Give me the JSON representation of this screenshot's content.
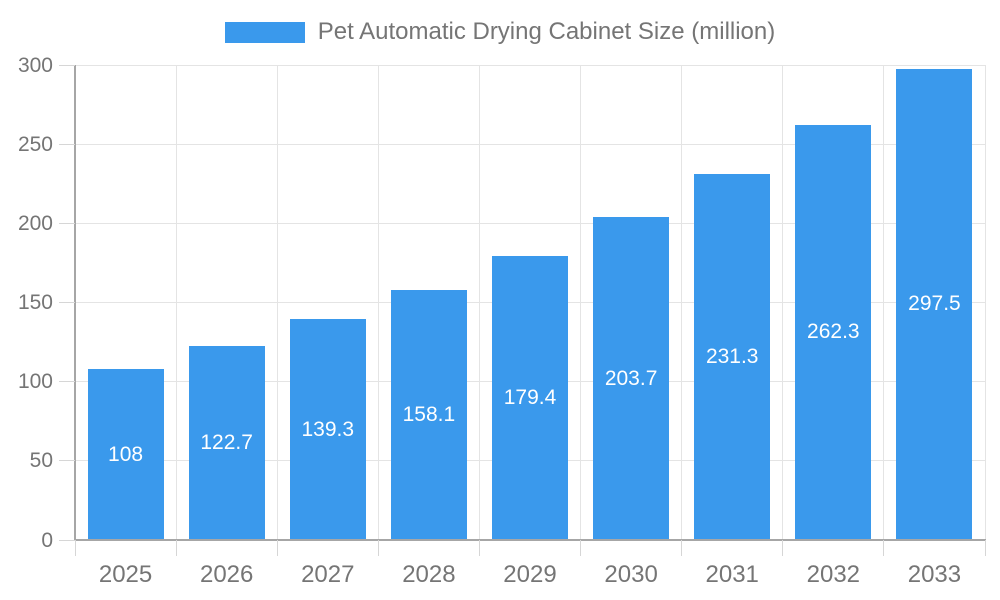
{
  "chart_data": {
    "type": "bar",
    "title": "Pet Automatic Drying Cabinet Size (million)",
    "categories": [
      "2025",
      "2026",
      "2027",
      "2028",
      "2029",
      "2030",
      "2031",
      "2032",
      "2033"
    ],
    "series": [
      {
        "name": "Pet Automatic Drying Cabinet Size (million)",
        "values": [
          108,
          122.7,
          139.3,
          158.1,
          179.4,
          203.7,
          231.3,
          262.3,
          297.5
        ]
      }
    ],
    "value_labels": [
      "108",
      "122.7",
      "139.3",
      "158.1",
      "179.4",
      "203.7",
      "231.3",
      "262.3",
      "297.5"
    ],
    "xlabel": "",
    "ylabel": "",
    "ylim": [
      0,
      300
    ],
    "ytick_step": 50,
    "ytick_labels": [
      "0",
      "50",
      "100",
      "150",
      "200",
      "250",
      "300"
    ],
    "grid": true,
    "legend_position": "top",
    "colors": {
      "bar": "#3A99EC",
      "value_label_text": "#FFFFFF",
      "axis_text": "#757575",
      "axis_line": "#A6A6A6",
      "gridline": "#E4E4E4",
      "tick": "#D6D6D6",
      "background": "#FFFFFF"
    }
  }
}
